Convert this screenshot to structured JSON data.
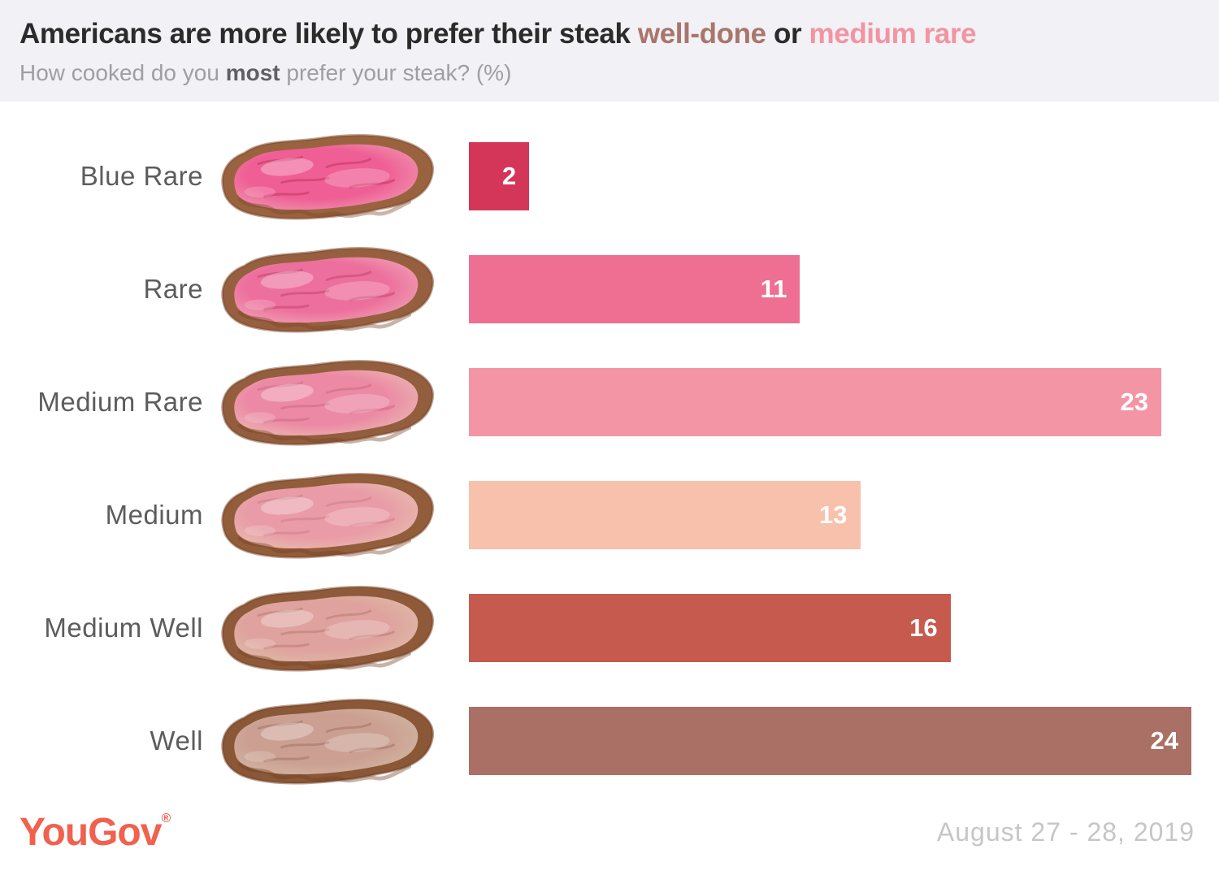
{
  "header": {
    "title_prefix": "Americans are more likely to prefer their steak ",
    "title_highlight_1": "well-done",
    "title_conjunction": " or ",
    "title_highlight_2": "medium rare",
    "subtitle_prefix": "How cooked do you ",
    "subtitle_bold": "most",
    "subtitle_suffix": " prefer your steak? (%)",
    "colors": {
      "background": "#f2f1f6",
      "title_text": "#2b2b2b",
      "highlight_well_done": "#a8766a",
      "highlight_medium_rare": "#f294a2",
      "subtitle_text": "#9e9ea3"
    }
  },
  "chart_data": {
    "type": "bar",
    "orientation": "horizontal",
    "title": "Americans are more likely to prefer their steak well-done or medium rare",
    "subtitle": "How cooked do you most prefer your steak? (%)",
    "categories": [
      "Blue Rare",
      "Rare",
      "Medium Rare",
      "Medium",
      "Medium Well",
      "Well"
    ],
    "values": [
      2,
      11,
      23,
      13,
      16,
      24
    ],
    "unit": "%",
    "xlim": [
      0,
      24
    ],
    "grid": false,
    "legend": false,
    "value_labels_inside_bars": true,
    "value_label_color": "#ffffff",
    "bar_colors": [
      "#d43659",
      "#ee6f92",
      "#f495a5",
      "#f7c1ab",
      "#c65a4e",
      "#aa7065"
    ],
    "category_label_color": "#5c5c5c",
    "steak_colors": [
      {
        "core": "#ef5f95",
        "edge": "#efa0b3",
        "crust": "#9a6340",
        "dark": "#7c4527",
        "vein": "#c23a62"
      },
      {
        "core": "#ed6f9d",
        "edge": "#eeadb9",
        "crust": "#966040",
        "dark": "#7a4426",
        "vein": "#c54a6e"
      },
      {
        "core": "#ec8aa5",
        "edge": "#e9c0b4",
        "crust": "#935e3d",
        "dark": "#784325",
        "vein": "#cf6d86"
      },
      {
        "core": "#e99ca7",
        "edge": "#e6c3b0",
        "crust": "#925d3b",
        "dark": "#774224",
        "vein": "#cf8288"
      },
      {
        "core": "#dfa29e",
        "edge": "#ddc0a7",
        "crust": "#8f5a39",
        "dark": "#744023",
        "vein": "#b97f73"
      },
      {
        "core": "#cba092",
        "edge": "#d3b9a4",
        "crust": "#8a5737",
        "dark": "#703e22",
        "vein": "#a3766a"
      }
    ]
  },
  "footer": {
    "logo_text": "YouGov",
    "registered_mark": "®",
    "logo_color": "#f0614e",
    "date": "August 27 - 28, 2019",
    "date_color": "#c6c6c8"
  }
}
